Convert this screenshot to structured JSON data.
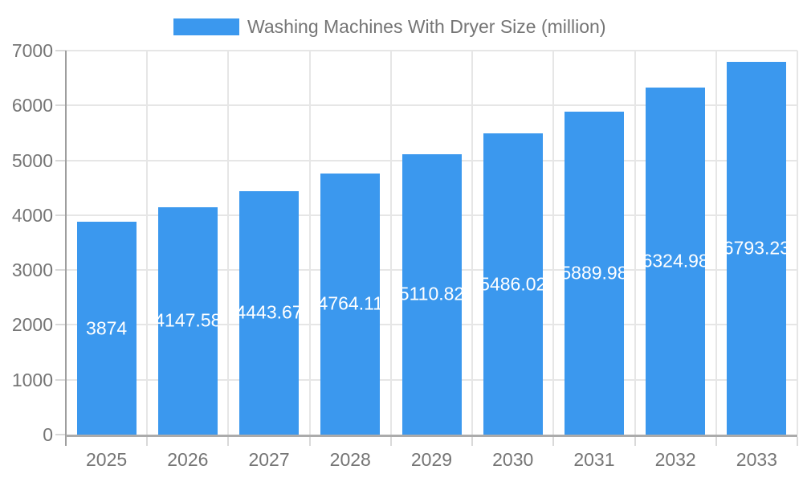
{
  "chart_data": {
    "type": "bar",
    "title": "Washing Machines With Dryer Size (million)",
    "categories": [
      "2025",
      "2026",
      "2027",
      "2028",
      "2029",
      "2030",
      "2031",
      "2032",
      "2033"
    ],
    "series": [
      {
        "name": "Washing Machines With Dryer Size (million)",
        "values": [
          3874,
          4147.58,
          4443.67,
          4764.11,
          5110.82,
          5486.02,
          5889.98,
          6324.98,
          6793.23
        ],
        "value_labels": [
          "3874",
          "4147.58",
          "4443.67",
          "4764.11",
          "5110.82",
          "5486.02",
          "5889.98",
          "6324.98",
          "6793.23"
        ],
        "color": "#3B98EE"
      }
    ],
    "ylim": [
      0,
      7000
    ],
    "y_tick_interval": 1000,
    "y_tick_labels": [
      "0",
      "1000",
      "2000",
      "3000",
      "4000",
      "5000",
      "6000",
      "7000"
    ],
    "grid": true,
    "legend_position": "top",
    "colors": {
      "bar": "#3B98EE",
      "bar_value_text": "#ffffff",
      "axis_text": "#757575",
      "grid_line": "#e6e6e6",
      "axis_line": "#9e9e9e",
      "baseline": "#ababab",
      "tick": "#d9d9d9",
      "background": "#ffffff"
    }
  }
}
